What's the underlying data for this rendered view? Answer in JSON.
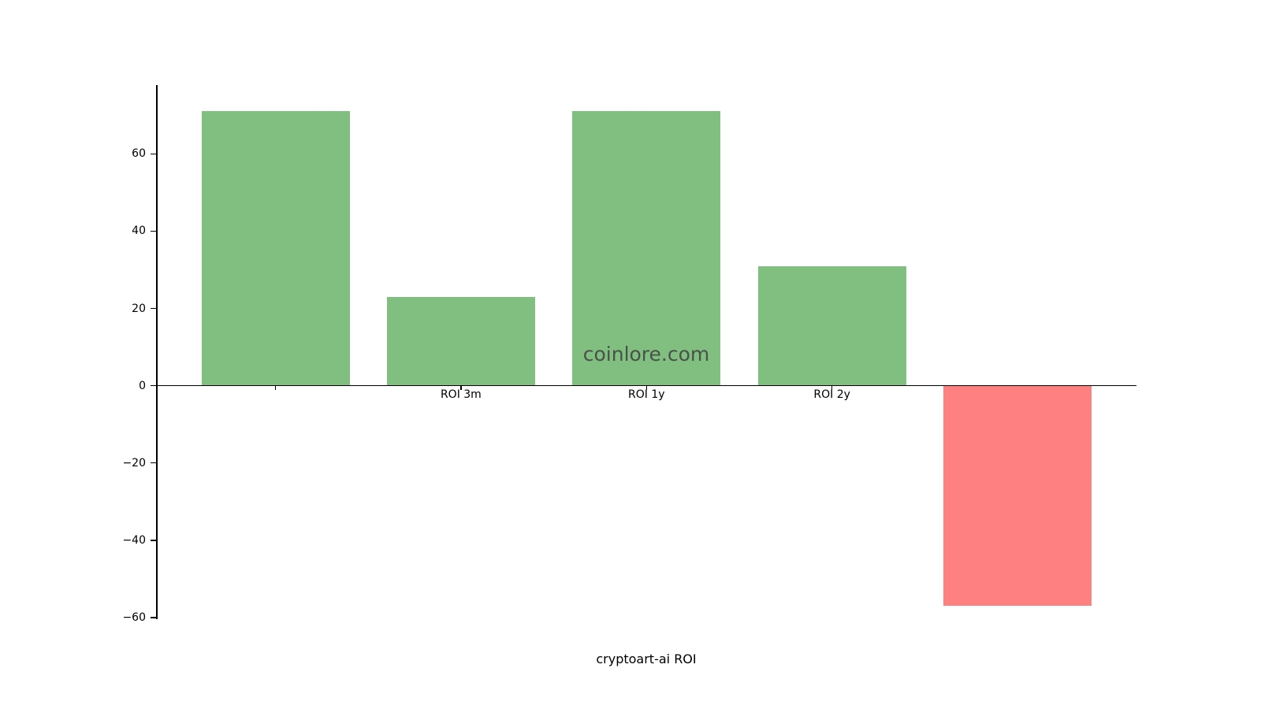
{
  "chart_data": {
    "type": "bar",
    "title": "cryptoart-ai ROI",
    "watermark": "coinlore.com",
    "categories": [
      "",
      "ROI 3m",
      "ROI 1y",
      "ROI 2y",
      ""
    ],
    "values": [
      71,
      23,
      71,
      31,
      -57
    ],
    "bar_colors": [
      "#80bf80",
      "#80bf80",
      "#80bf80",
      "#80bf80",
      "#ff8080"
    ],
    "xtick_present": [
      true,
      true,
      true,
      true,
      false
    ],
    "yticks": [
      60,
      40,
      20,
      0,
      -20,
      -40,
      -60
    ],
    "ytick_labels": [
      "60",
      "40",
      "20",
      "0",
      "−20",
      "−40",
      "−60"
    ],
    "ylim": [
      -60.4,
      77.8
    ],
    "xlabel": "cryptoart-ai ROI",
    "grid": false,
    "legend": "none",
    "positive_color": "#80bf80",
    "negative_color": "#ff8080",
    "axis_color": "#000000",
    "watermark_color": "#404040",
    "background_color": "#ffffff"
  }
}
